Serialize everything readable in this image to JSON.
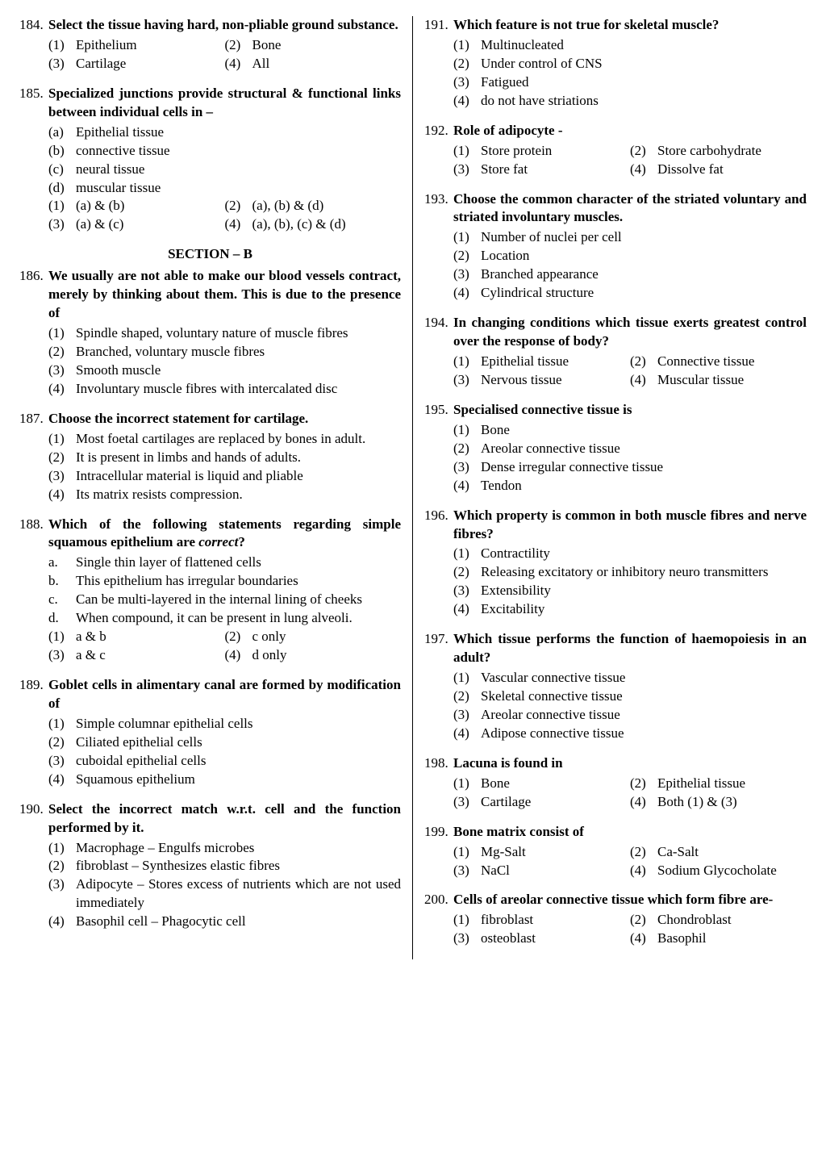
{
  "section_b": "SECTION – B",
  "left": [
    {
      "num": "184.",
      "stem": "Select the tissue having hard, non-pliable ground substance.",
      "opts": [
        {
          "l": "(1)",
          "t": "Epithelium"
        },
        {
          "l": "(2)",
          "t": "Bone"
        },
        {
          "l": "(3)",
          "t": "Cartilage"
        },
        {
          "l": "(4)",
          "t": "All"
        }
      ],
      "cols": 2
    },
    {
      "num": "185.",
      "stem": "Specialized junctions provide structural & functional links between individual cells in –",
      "subs": [
        {
          "l": "(a)",
          "t": "Epithelial tissue"
        },
        {
          "l": "(b)",
          "t": "connective tissue"
        },
        {
          "l": "(c)",
          "t": "neural tissue"
        },
        {
          "l": "(d)",
          "t": "muscular tissue"
        }
      ],
      "opts": [
        {
          "l": "(1)",
          "t": "(a) & (b)"
        },
        {
          "l": "(2)",
          "t": "(a), (b) & (d)"
        },
        {
          "l": "(3)",
          "t": "(a) & (c)"
        },
        {
          "l": "(4)",
          "t": "(a), (b), (c) & (d)"
        }
      ],
      "cols": 2
    },
    {
      "num": "186.",
      "before_section": true,
      "stem": "We usually are not able to make our blood vessels contract, merely by thinking about them. This is due to the presence of",
      "opts": [
        {
          "l": "(1)",
          "t": "Spindle shaped, voluntary nature of muscle fibres"
        },
        {
          "l": "(2)",
          "t": "Branched, voluntary muscle fibres"
        },
        {
          "l": "(3)",
          "t": "Smooth muscle"
        },
        {
          "l": "(4)",
          "t": "Involuntary muscle fibres with intercalated disc"
        }
      ],
      "cols": 1
    },
    {
      "num": "187.",
      "stem": "Choose the incorrect statement for cartilage.",
      "opts": [
        {
          "l": "(1)",
          "t": "Most foetal cartilages are replaced by bones in adult."
        },
        {
          "l": "(2)",
          "t": "It is present in limbs and hands of adults."
        },
        {
          "l": "(3)",
          "t": "Intracellular material is liquid and pliable"
        },
        {
          "l": "(4)",
          "t": "Its matrix resists compression."
        }
      ],
      "cols": 1
    },
    {
      "num": "188.",
      "stem_html": "Which of the following statements regarding simple squamous epithelium are <em class=\"ital\">correct</em>?",
      "subs": [
        {
          "l": "a.",
          "t": "Single thin layer of flattened cells"
        },
        {
          "l": "b.",
          "t": "This epithelium has irregular boundaries"
        },
        {
          "l": "c.",
          "t": "Can be multi-layered in the internal lining of cheeks"
        },
        {
          "l": "d.",
          "t": "When compound, it can be present in lung alveoli."
        }
      ],
      "opts": [
        {
          "l": "(1)",
          "t": "a & b"
        },
        {
          "l": "(2)",
          "t": "c only"
        },
        {
          "l": "(3)",
          "t": "a & c"
        },
        {
          "l": "(4)",
          "t": "d only"
        }
      ],
      "cols": 2
    },
    {
      "num": "189.",
      "stem": "Goblet cells in alimentary canal are formed by modification of",
      "opts": [
        {
          "l": "(1)",
          "t": "Simple columnar epithelial cells"
        },
        {
          "l": "(2)",
          "t": "Ciliated epithelial cells"
        },
        {
          "l": "(3)",
          "t": "cuboidal epithelial cells"
        },
        {
          "l": "(4)",
          "t": "Squamous epithelium"
        }
      ],
      "cols": 1
    },
    {
      "num": "190.",
      "stem": "Select the incorrect match w.r.t. cell and the function performed by it.",
      "opts": [
        {
          "l": "(1)",
          "t": "Macrophage – Engulfs microbes"
        },
        {
          "l": "(2)",
          "t": "fibroblast – Synthesizes elastic fibres"
        },
        {
          "l": "(3)",
          "t": "Adipocyte – Stores excess of nutrients which are not used immediately"
        },
        {
          "l": "(4)",
          "t": "Basophil cell – Phagocytic cell"
        }
      ],
      "cols": 1
    }
  ],
  "right": [
    {
      "num": "191.",
      "stem": "Which feature is not true for skeletal muscle?",
      "opts": [
        {
          "l": "(1)",
          "t": "Multinucleated"
        },
        {
          "l": "(2)",
          "t": "Under control of CNS"
        },
        {
          "l": "(3)",
          "t": "Fatigued"
        },
        {
          "l": "(4)",
          "t": "do not have striations"
        }
      ],
      "cols": 1
    },
    {
      "num": "192.",
      "stem": "Role of adipocyte -",
      "opts": [
        {
          "l": "(1)",
          "t": "Store protein"
        },
        {
          "l": "(2)",
          "t": "Store carbohydrate"
        },
        {
          "l": "(3)",
          "t": "Store fat"
        },
        {
          "l": "(4)",
          "t": "Dissolve fat"
        }
      ],
      "cols": 2
    },
    {
      "num": "193.",
      "stem": "Choose the common character of the striated voluntary and striated involuntary muscles.",
      "opts": [
        {
          "l": "(1)",
          "t": "Number of nuclei per cell"
        },
        {
          "l": "(2)",
          "t": "Location"
        },
        {
          "l": "(3)",
          "t": "Branched appearance"
        },
        {
          "l": "(4)",
          "t": "Cylindrical structure"
        }
      ],
      "cols": 1
    },
    {
      "num": "194.",
      "stem": "In changing conditions which tissue exerts greatest control over the response of body?",
      "opts": [
        {
          "l": "(1)",
          "t": "Epithelial tissue"
        },
        {
          "l": "(2)",
          "t": "Connective tissue"
        },
        {
          "l": "(3)",
          "t": "Nervous tissue"
        },
        {
          "l": "(4)",
          "t": "Muscular tissue"
        }
      ],
      "cols": 2
    },
    {
      "num": "195.",
      "stem": "Specialised connective tissue is",
      "opts": [
        {
          "l": "(1)",
          "t": "Bone"
        },
        {
          "l": "(2)",
          "t": "Areolar connective tissue"
        },
        {
          "l": "(3)",
          "t": "Dense irregular connective tissue"
        },
        {
          "l": "(4)",
          "t": "Tendon"
        }
      ],
      "cols": 1
    },
    {
      "num": "196.",
      "stem": "Which property is common in both muscle fibres and nerve fibres?",
      "opts": [
        {
          "l": "(1)",
          "t": "Contractility"
        },
        {
          "l": "(2)",
          "t": "Releasing excitatory or inhibitory neuro transmitters"
        },
        {
          "l": "(3)",
          "t": "Extensibility"
        },
        {
          "l": "(4)",
          "t": "Excitability"
        }
      ],
      "cols": 1
    },
    {
      "num": "197.",
      "stem": "Which tissue performs the function of haemopoiesis in an adult?",
      "opts": [
        {
          "l": "(1)",
          "t": "Vascular connective tissue"
        },
        {
          "l": "(2)",
          "t": "Skeletal connective tissue"
        },
        {
          "l": "(3)",
          "t": "Areolar connective tissue"
        },
        {
          "l": "(4)",
          "t": "Adipose connective tissue"
        }
      ],
      "cols": 1
    },
    {
      "num": "198.",
      "stem": "Lacuna is found in",
      "opts": [
        {
          "l": "(1)",
          "t": "Bone"
        },
        {
          "l": "(2)",
          "t": "Epithelial tissue"
        },
        {
          "l": "(3)",
          "t": "Cartilage"
        },
        {
          "l": "(4)",
          "t": "Both (1) & (3)"
        }
      ],
      "cols": 2
    },
    {
      "num": "199.",
      "stem": "Bone matrix consist of",
      "opts": [
        {
          "l": "(1)",
          "t": "Mg-Salt"
        },
        {
          "l": "(2)",
          "t": "Ca-Salt"
        },
        {
          "l": "(3)",
          "t": "NaCl"
        },
        {
          "l": "(4)",
          "t": "Sodium Glycocholate"
        }
      ],
      "cols": 2
    },
    {
      "num": "200.",
      "stem": "Cells of areolar connective tissue which form fibre are-",
      "opts": [
        {
          "l": "(1)",
          "t": "fibroblast"
        },
        {
          "l": "(2)",
          "t": "Chondroblast"
        },
        {
          "l": "(3)",
          "t": "osteoblast"
        },
        {
          "l": "(4)",
          "t": "Basophil"
        }
      ],
      "cols": 2
    }
  ]
}
